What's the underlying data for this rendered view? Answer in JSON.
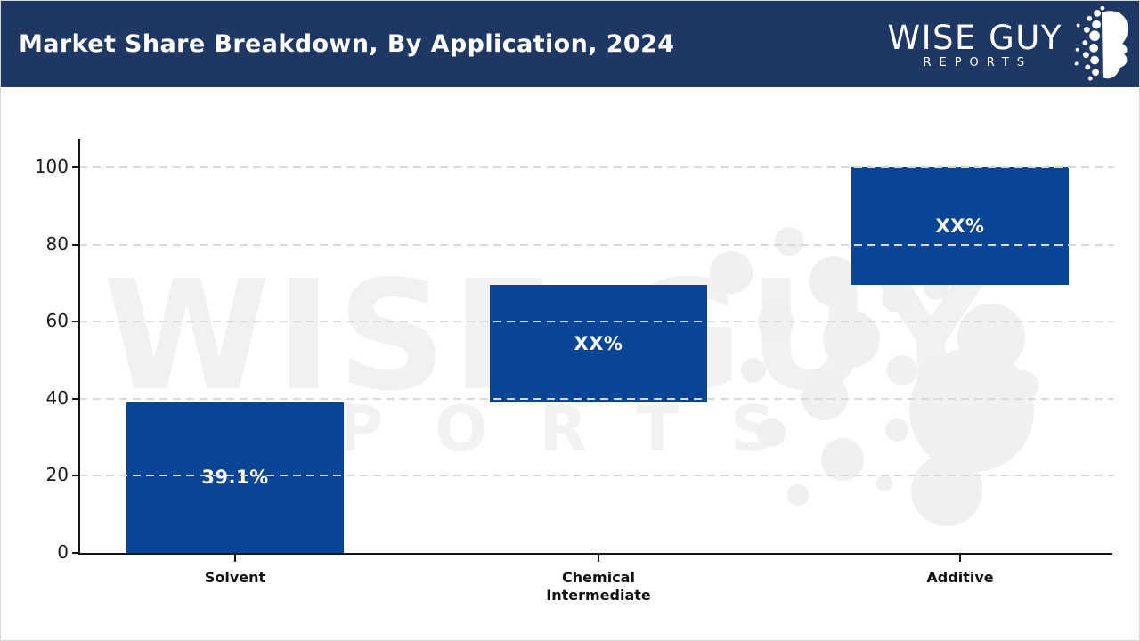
{
  "header": {
    "title": "Market Share Breakdown, By Application, 2024",
    "logo": {
      "wordmark": "WISE GUY",
      "subtitle": "REPORTS"
    }
  },
  "watermark": {
    "wordmark": "WISE GUY",
    "subtitle": "REPORTS"
  },
  "chart_data": {
    "type": "bar",
    "subtype": "floating-segment-bars",
    "title": "Market Share Breakdown, By Application, 2024",
    "categories": [
      "Solvent",
      "Chemical Intermediate",
      "Additive"
    ],
    "category_label_lines": [
      [
        "Solvent"
      ],
      [
        "Chemical",
        "Intermediate"
      ],
      [
        "Additive"
      ]
    ],
    "segments": [
      {
        "category": "Solvent",
        "from": 0,
        "to": 39.1,
        "label": "39.1%"
      },
      {
        "category": "Chemical Intermediate",
        "from": 39.1,
        "to": 69.4,
        "label": "XX%"
      },
      {
        "category": "Additive",
        "from": 69.4,
        "to": 100,
        "label": "XX%"
      }
    ],
    "yticks": [
      0,
      20,
      40,
      60,
      80,
      100
    ],
    "ylim": [
      0,
      107
    ],
    "xlabel": "",
    "ylabel": "",
    "grid": "horizontal-dashed",
    "legend": "none",
    "bar_color": "#084595",
    "bar_label_color": "#ffffff"
  },
  "colors": {
    "header_bg": "#1f3763",
    "axis": "#141414",
    "tick_label": "#1a1a1a",
    "gridline": "#d9d9d9",
    "watermark": "#f0f0f0",
    "background": "#ffffff"
  }
}
